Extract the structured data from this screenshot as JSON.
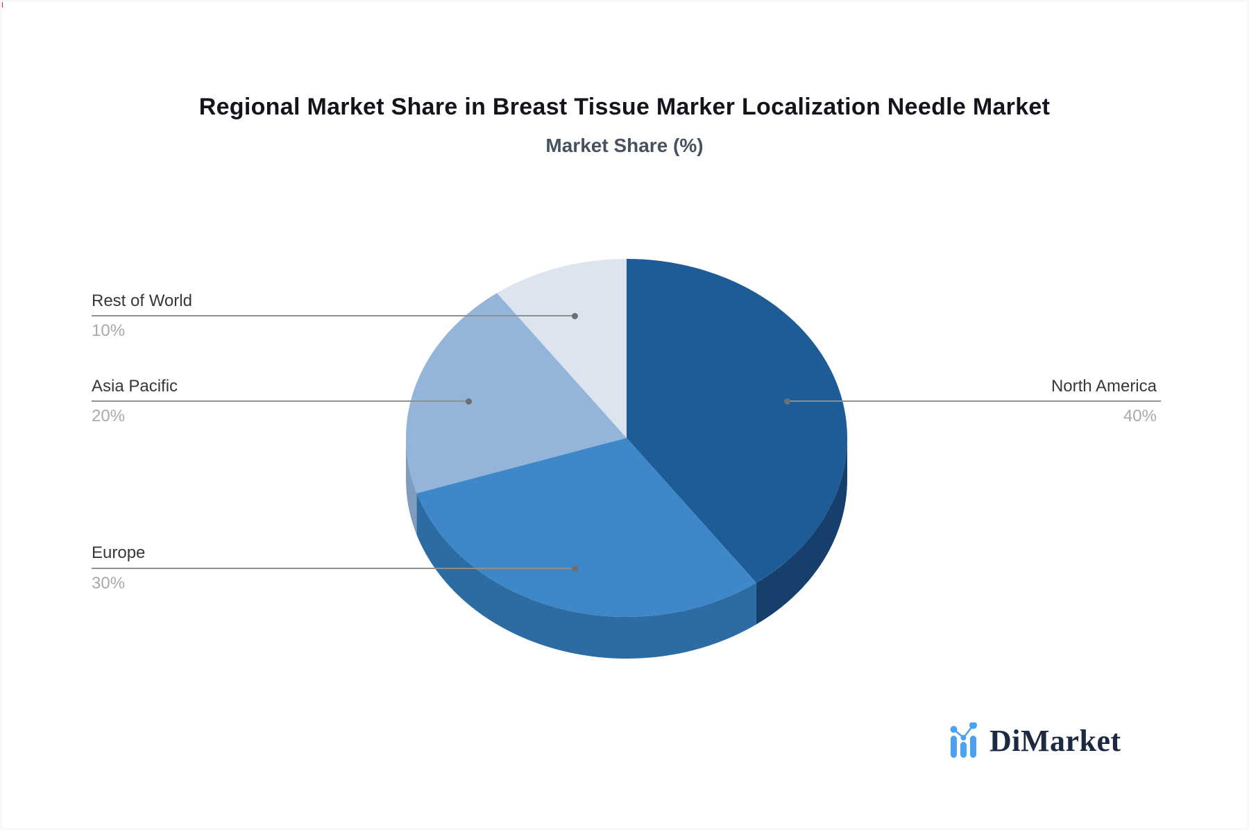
{
  "page": {
    "background_color": "#ffffff",
    "edge_border_color": "#f8f9fb",
    "corner_artifact_color": "#d2232a"
  },
  "header": {
    "title": "Regional Market Share in Breast Tissue Marker Localization Needle Market",
    "subtitle": "Market Share (%)"
  },
  "chart_data": {
    "type": "pie",
    "effect": "3d",
    "title": "Regional Market Share in Breast Tissue Marker Localization Needle Market",
    "subtitle": "Market Share (%)",
    "start_angle_deg": 0,
    "direction": "clockwise",
    "legend_position": "callout-labels",
    "segments": [
      {
        "label": "North America",
        "value": 40,
        "pct_label": "40%",
        "color": "#1e5c97",
        "side_color": "#16406b"
      },
      {
        "label": "Europe",
        "value": 30,
        "pct_label": "30%",
        "color": "#3e87c8",
        "side_color": "#2d6ba3"
      },
      {
        "label": "Asia Pacific",
        "value": 20,
        "pct_label": "20%",
        "color": "#93b5d9",
        "side_color": "#7e9cbd"
      },
      {
        "label": "Rest of World",
        "value": 10,
        "pct_label": "10%",
        "color": "#dce4ef",
        "side_color": "#c3cfdf"
      }
    ]
  },
  "branding": {
    "logo_text": "DiMarket",
    "logo_icon": "bar-line-chart-icon",
    "icon_color": "#4ba1f2",
    "text_color": "#1c2940"
  }
}
